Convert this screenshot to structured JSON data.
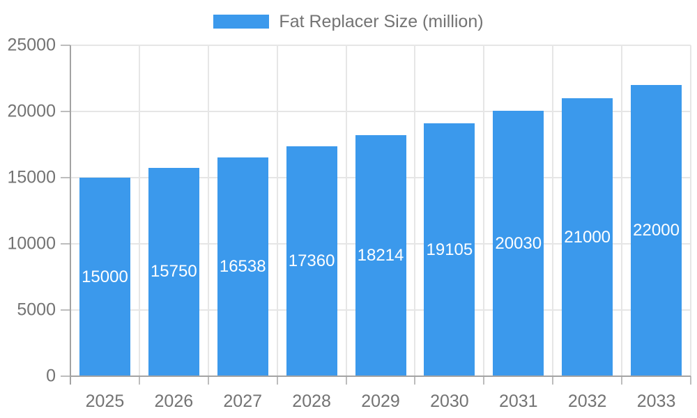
{
  "legend": {
    "position": "top",
    "items": [
      {
        "label": "Fat Replacer Size (million)",
        "swatch_color": "#3b99ec"
      }
    ]
  },
  "chart_data": {
    "type": "bar",
    "title": "",
    "xlabel": "",
    "ylabel": "",
    "categories": [
      "2025",
      "2026",
      "2027",
      "2028",
      "2029",
      "2030",
      "2031",
      "2032",
      "2033"
    ],
    "series": [
      {
        "name": "Fat Replacer Size (million)",
        "values": [
          15000,
          15750,
          16538,
          17360,
          18214,
          19105,
          20030,
          21000,
          22000
        ]
      }
    ],
    "value_labels": [
      "15000",
      "15750",
      "16538",
      "17360",
      "18214",
      "19105",
      "20030",
      "21000",
      "22000"
    ],
    "ylim": [
      0,
      25000
    ],
    "yticks": [
      0,
      5000,
      10000,
      15000,
      20000,
      25000
    ],
    "ytick_labels": [
      "0",
      "5000",
      "10000",
      "15000",
      "20000",
      "25000"
    ],
    "grid": true,
    "legend_position": "top",
    "colors": {
      "bar": "#3b99ec",
      "value_label": "#ffffff",
      "tick_label": "#737373",
      "axis_line": "#a3a3a3",
      "tick_mark": "#bdbdbd",
      "grid_line": "#e6e6e6",
      "background": "#ffffff"
    }
  }
}
